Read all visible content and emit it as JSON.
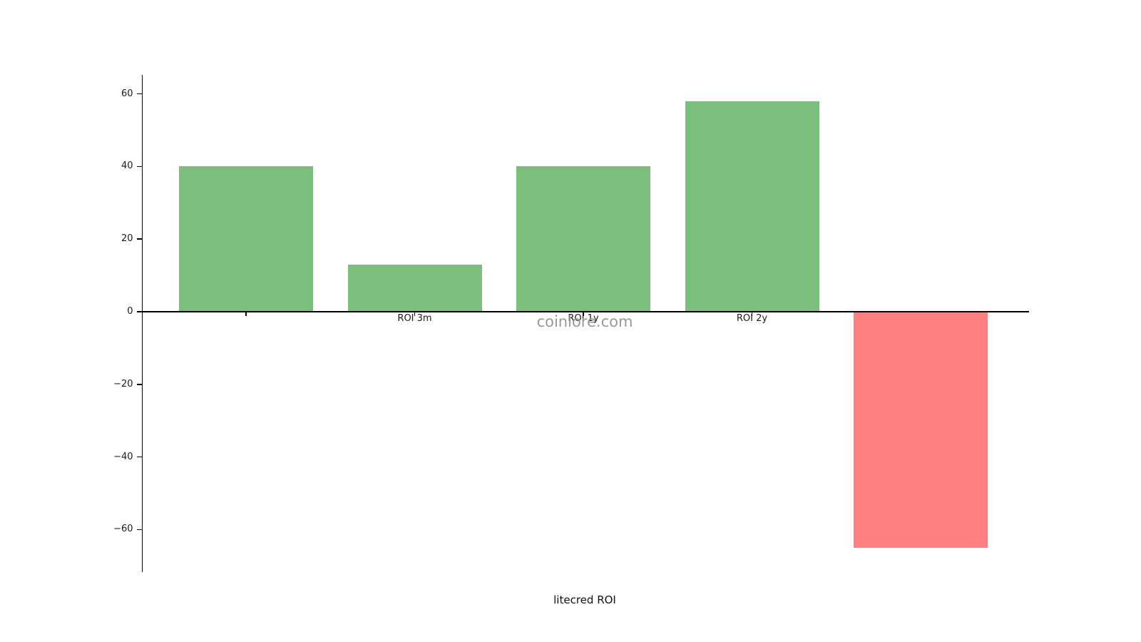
{
  "watermark": "coinlore.com",
  "chart_data": {
    "type": "bar",
    "title": "litecred ROI",
    "xlabel": "litecred ROI",
    "ylabel": "",
    "watermark": "coinlore.com",
    "categories": [
      "",
      "ROI 3m",
      "ROI 1y",
      "ROI 2y",
      ""
    ],
    "values": [
      40,
      13,
      40,
      58,
      -65
    ],
    "x_tick_marks_visible": [
      true,
      true,
      true,
      true,
      false
    ],
    "yticks": [
      60,
      40,
      20,
      0,
      -20,
      -40,
      -60
    ],
    "ylim": [
      -71,
      64
    ],
    "grid": false,
    "legend": null,
    "positive_color": "#7cbe7c",
    "negative_color": "#ff7f7f",
    "axis_color": "#000000",
    "tick_label_color": "#1a1a1a",
    "watermark_color": "#999999"
  }
}
